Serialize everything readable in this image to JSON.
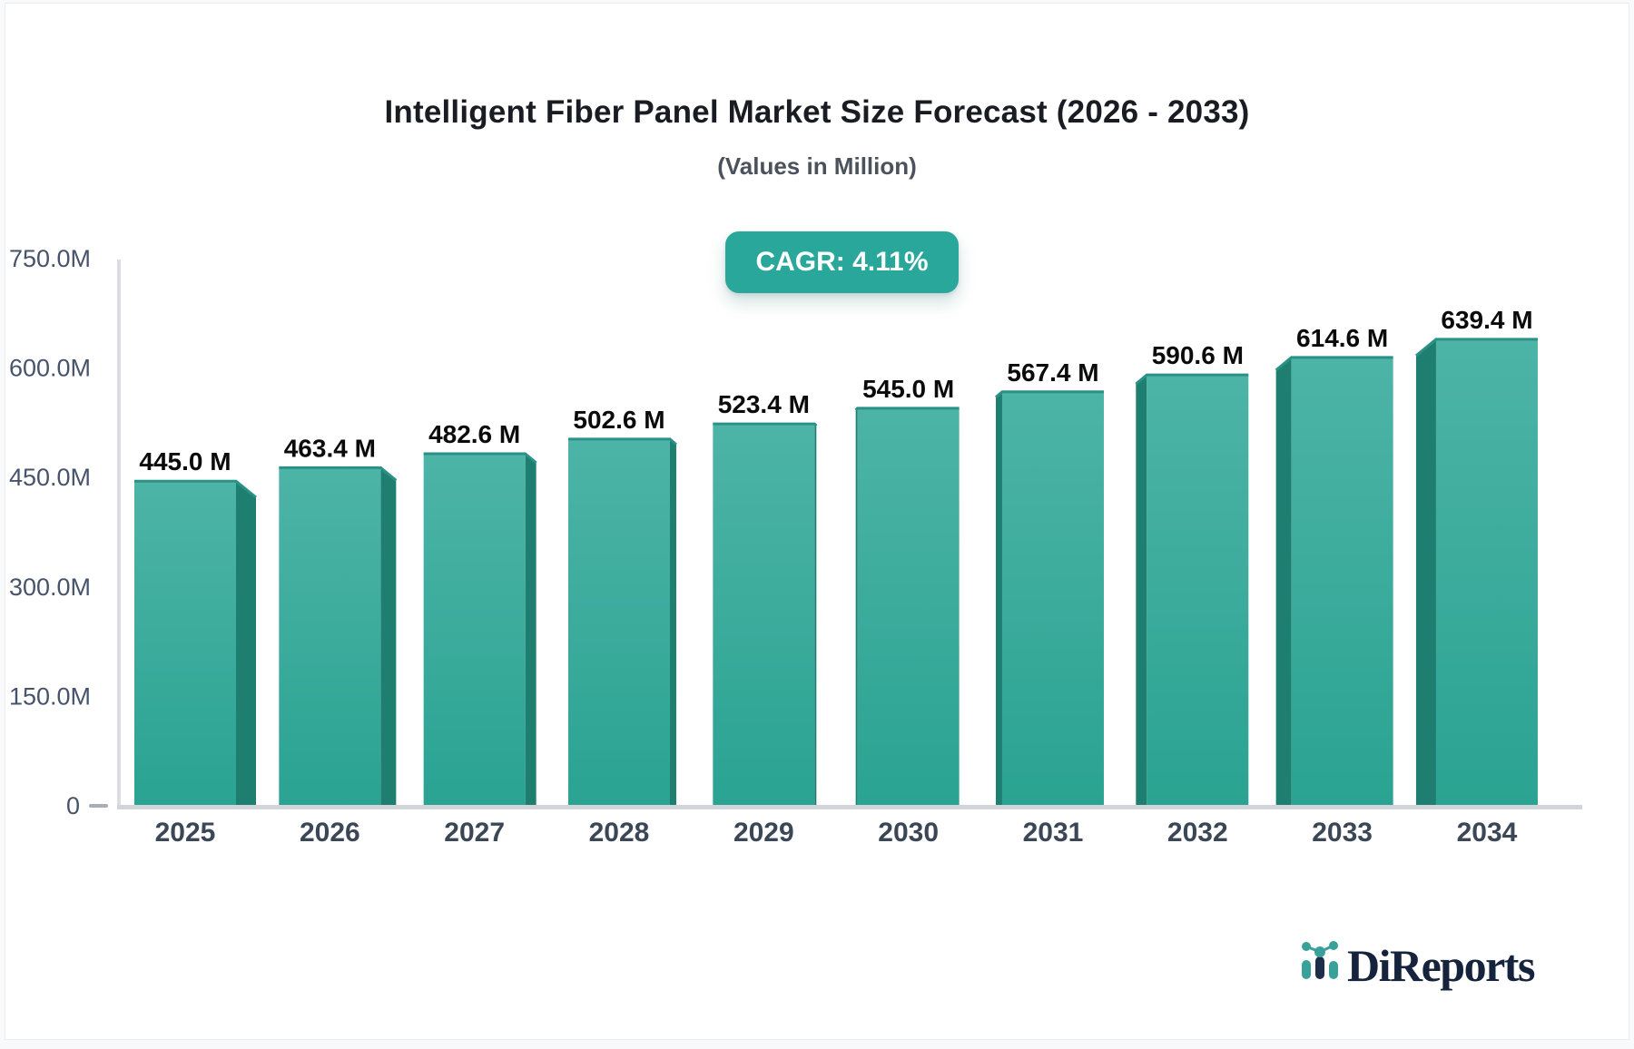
{
  "page": {
    "background": "#f8f9fa",
    "card_background": "#ffffff"
  },
  "header": {
    "title": "Intelligent Fiber Panel Market Size Forecast (2026 - 2033)",
    "subtitle": "(Values in Million)"
  },
  "badge": {
    "label": "CAGR: 4.11%",
    "color": "#2aa79b",
    "text_color": "#ffffff"
  },
  "chart_data": {
    "type": "bar",
    "title": "Intelligent Fiber Panel Market Size Forecast (2026 - 2033)",
    "subtitle": "(Values in Million)",
    "unit": "Million",
    "categories": [
      "2025",
      "2026",
      "2027",
      "2028",
      "2029",
      "2030",
      "2031",
      "2032",
      "2033",
      "2034"
    ],
    "values": [
      445.0,
      463.4,
      482.6,
      502.6,
      523.4,
      545.0,
      567.4,
      590.6,
      614.6,
      639.4
    ],
    "value_labels": [
      "445.0 M",
      "463.4 M",
      "482.6 M",
      "502.6 M",
      "523.4 M",
      "545.0 M",
      "567.4 M",
      "590.6 M",
      "614.6 M",
      "639.4 M"
    ],
    "xlabel": "",
    "ylabel": "",
    "ylim": [
      0,
      750
    ],
    "y_ticks": [
      {
        "value": 750,
        "label": "750.0M"
      },
      {
        "value": 600,
        "label": "600.0M"
      },
      {
        "value": 450,
        "label": "450.0M"
      },
      {
        "value": 300,
        "label": "300.0M"
      },
      {
        "value": 150,
        "label": "150.0M"
      },
      {
        "value": 0,
        "label": "0"
      }
    ],
    "grid": false,
    "legend": false,
    "bar_style": "3d",
    "colors": {
      "bar_face_top": "#4db4a7",
      "bar_face_bottom": "#2aa392",
      "bar_side": "#1e7e70",
      "bar_top_edge": "#2b9186",
      "axis_line": "#dbdde1",
      "baseline": "#d1d4d8",
      "zero_tick": "#a9aeb6"
    }
  },
  "logo": {
    "text": "DiReports",
    "icon": "mini-bar-chart-icon",
    "text_color": "#15233c",
    "icon_teal": "#39a199",
    "icon_navy": "#1c2e4a"
  }
}
